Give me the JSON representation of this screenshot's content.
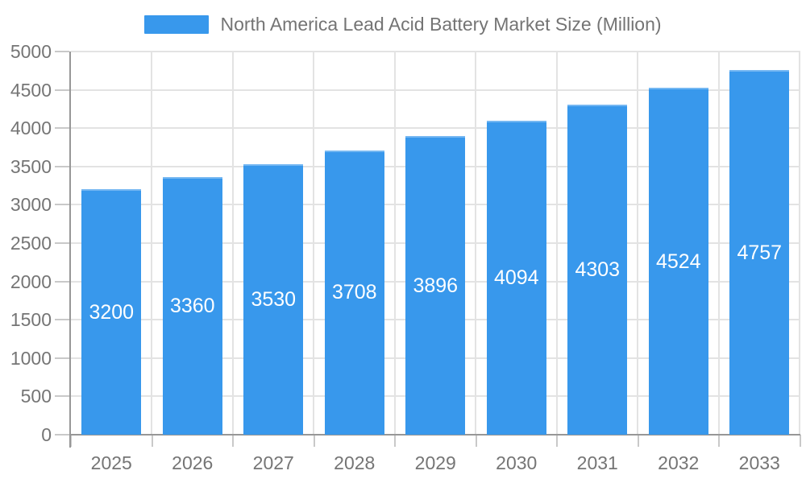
{
  "legend": {
    "position": "top"
  },
  "chart_data": {
    "type": "bar",
    "title": "North America Lead Acid Battery Market Size (Million)",
    "categories": [
      "2025",
      "2026",
      "2027",
      "2028",
      "2029",
      "2030",
      "2031",
      "2032",
      "2033"
    ],
    "values": [
      3200,
      3360,
      3530,
      3708,
      3896,
      4094,
      4303,
      4524,
      4757
    ],
    "xlabel": "",
    "ylabel": "",
    "ylim": [
      0,
      5000
    ],
    "ytick_step": 500,
    "ytick_labels": [
      "0",
      "500",
      "1000",
      "1500",
      "2000",
      "2500",
      "3000",
      "3500",
      "4000",
      "4500",
      "5000"
    ],
    "grid": true,
    "legend_position": "top",
    "bar_color": "#3898EC",
    "bar_label_color": "#FFFFFF",
    "axis_text_color": "#757575",
    "grid_color": "#E3E3E3",
    "axis_line_color": "#979797"
  }
}
